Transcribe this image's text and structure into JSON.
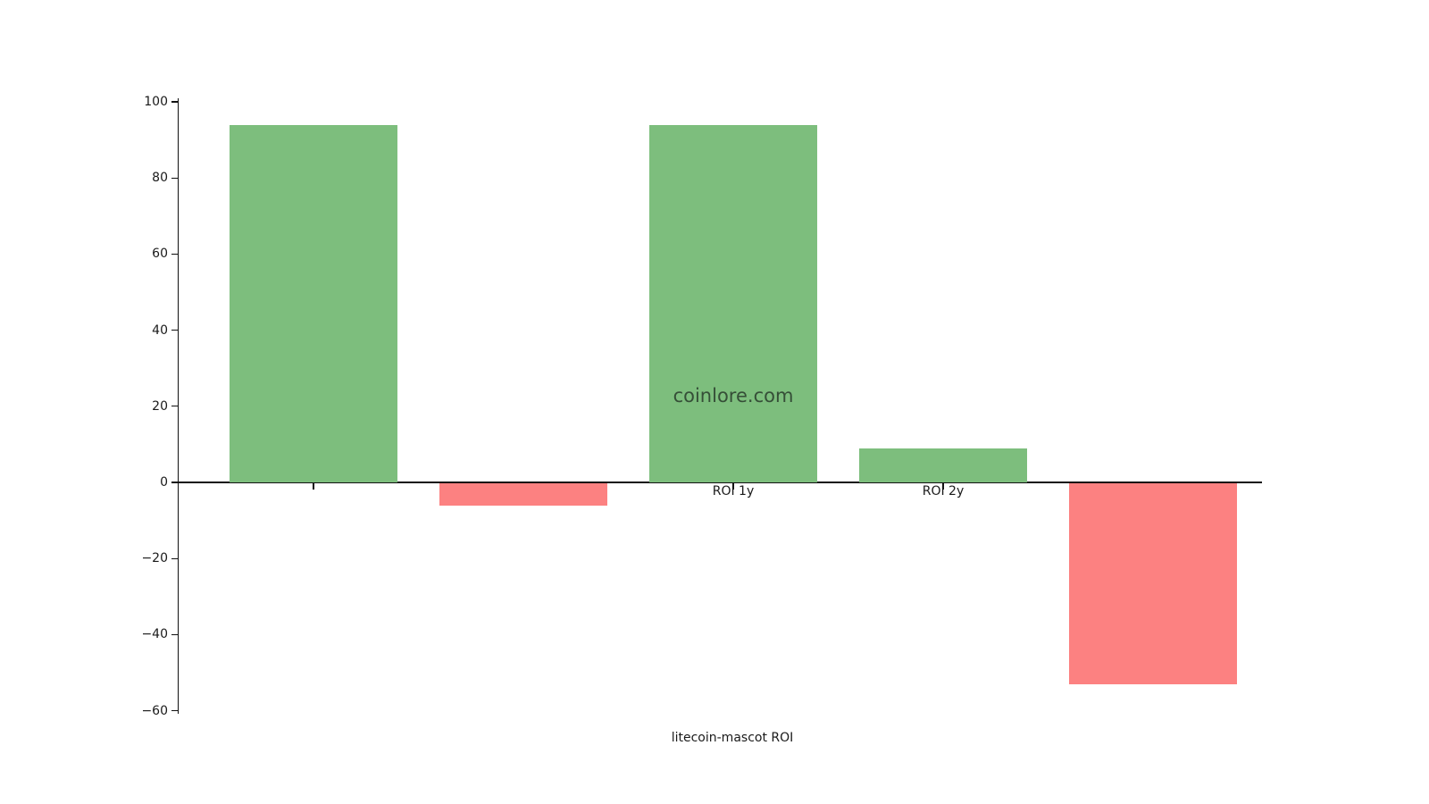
{
  "watermark": "coinlore.com",
  "chart_data": {
    "type": "bar",
    "title": "",
    "xlabel": "litecoin-mascot ROI",
    "ylabel": "",
    "categories": [
      "",
      "",
      "ROI 1y",
      "ROI 2y",
      ""
    ],
    "values": [
      94,
      -6,
      94,
      9,
      -53
    ],
    "yticks": [
      100,
      80,
      60,
      40,
      20,
      0,
      -20,
      -40,
      -60
    ],
    "ytick_labels": [
      "100",
      "80",
      "60",
      "40",
      "20",
      "0",
      "−20",
      "−40",
      "−60"
    ],
    "ylim": [
      -60.5,
      101.5
    ],
    "grid": false,
    "legend": null,
    "positive_color": "#7dbe7d",
    "negative_color": "#fc8181",
    "axis_color": "#111111"
  }
}
